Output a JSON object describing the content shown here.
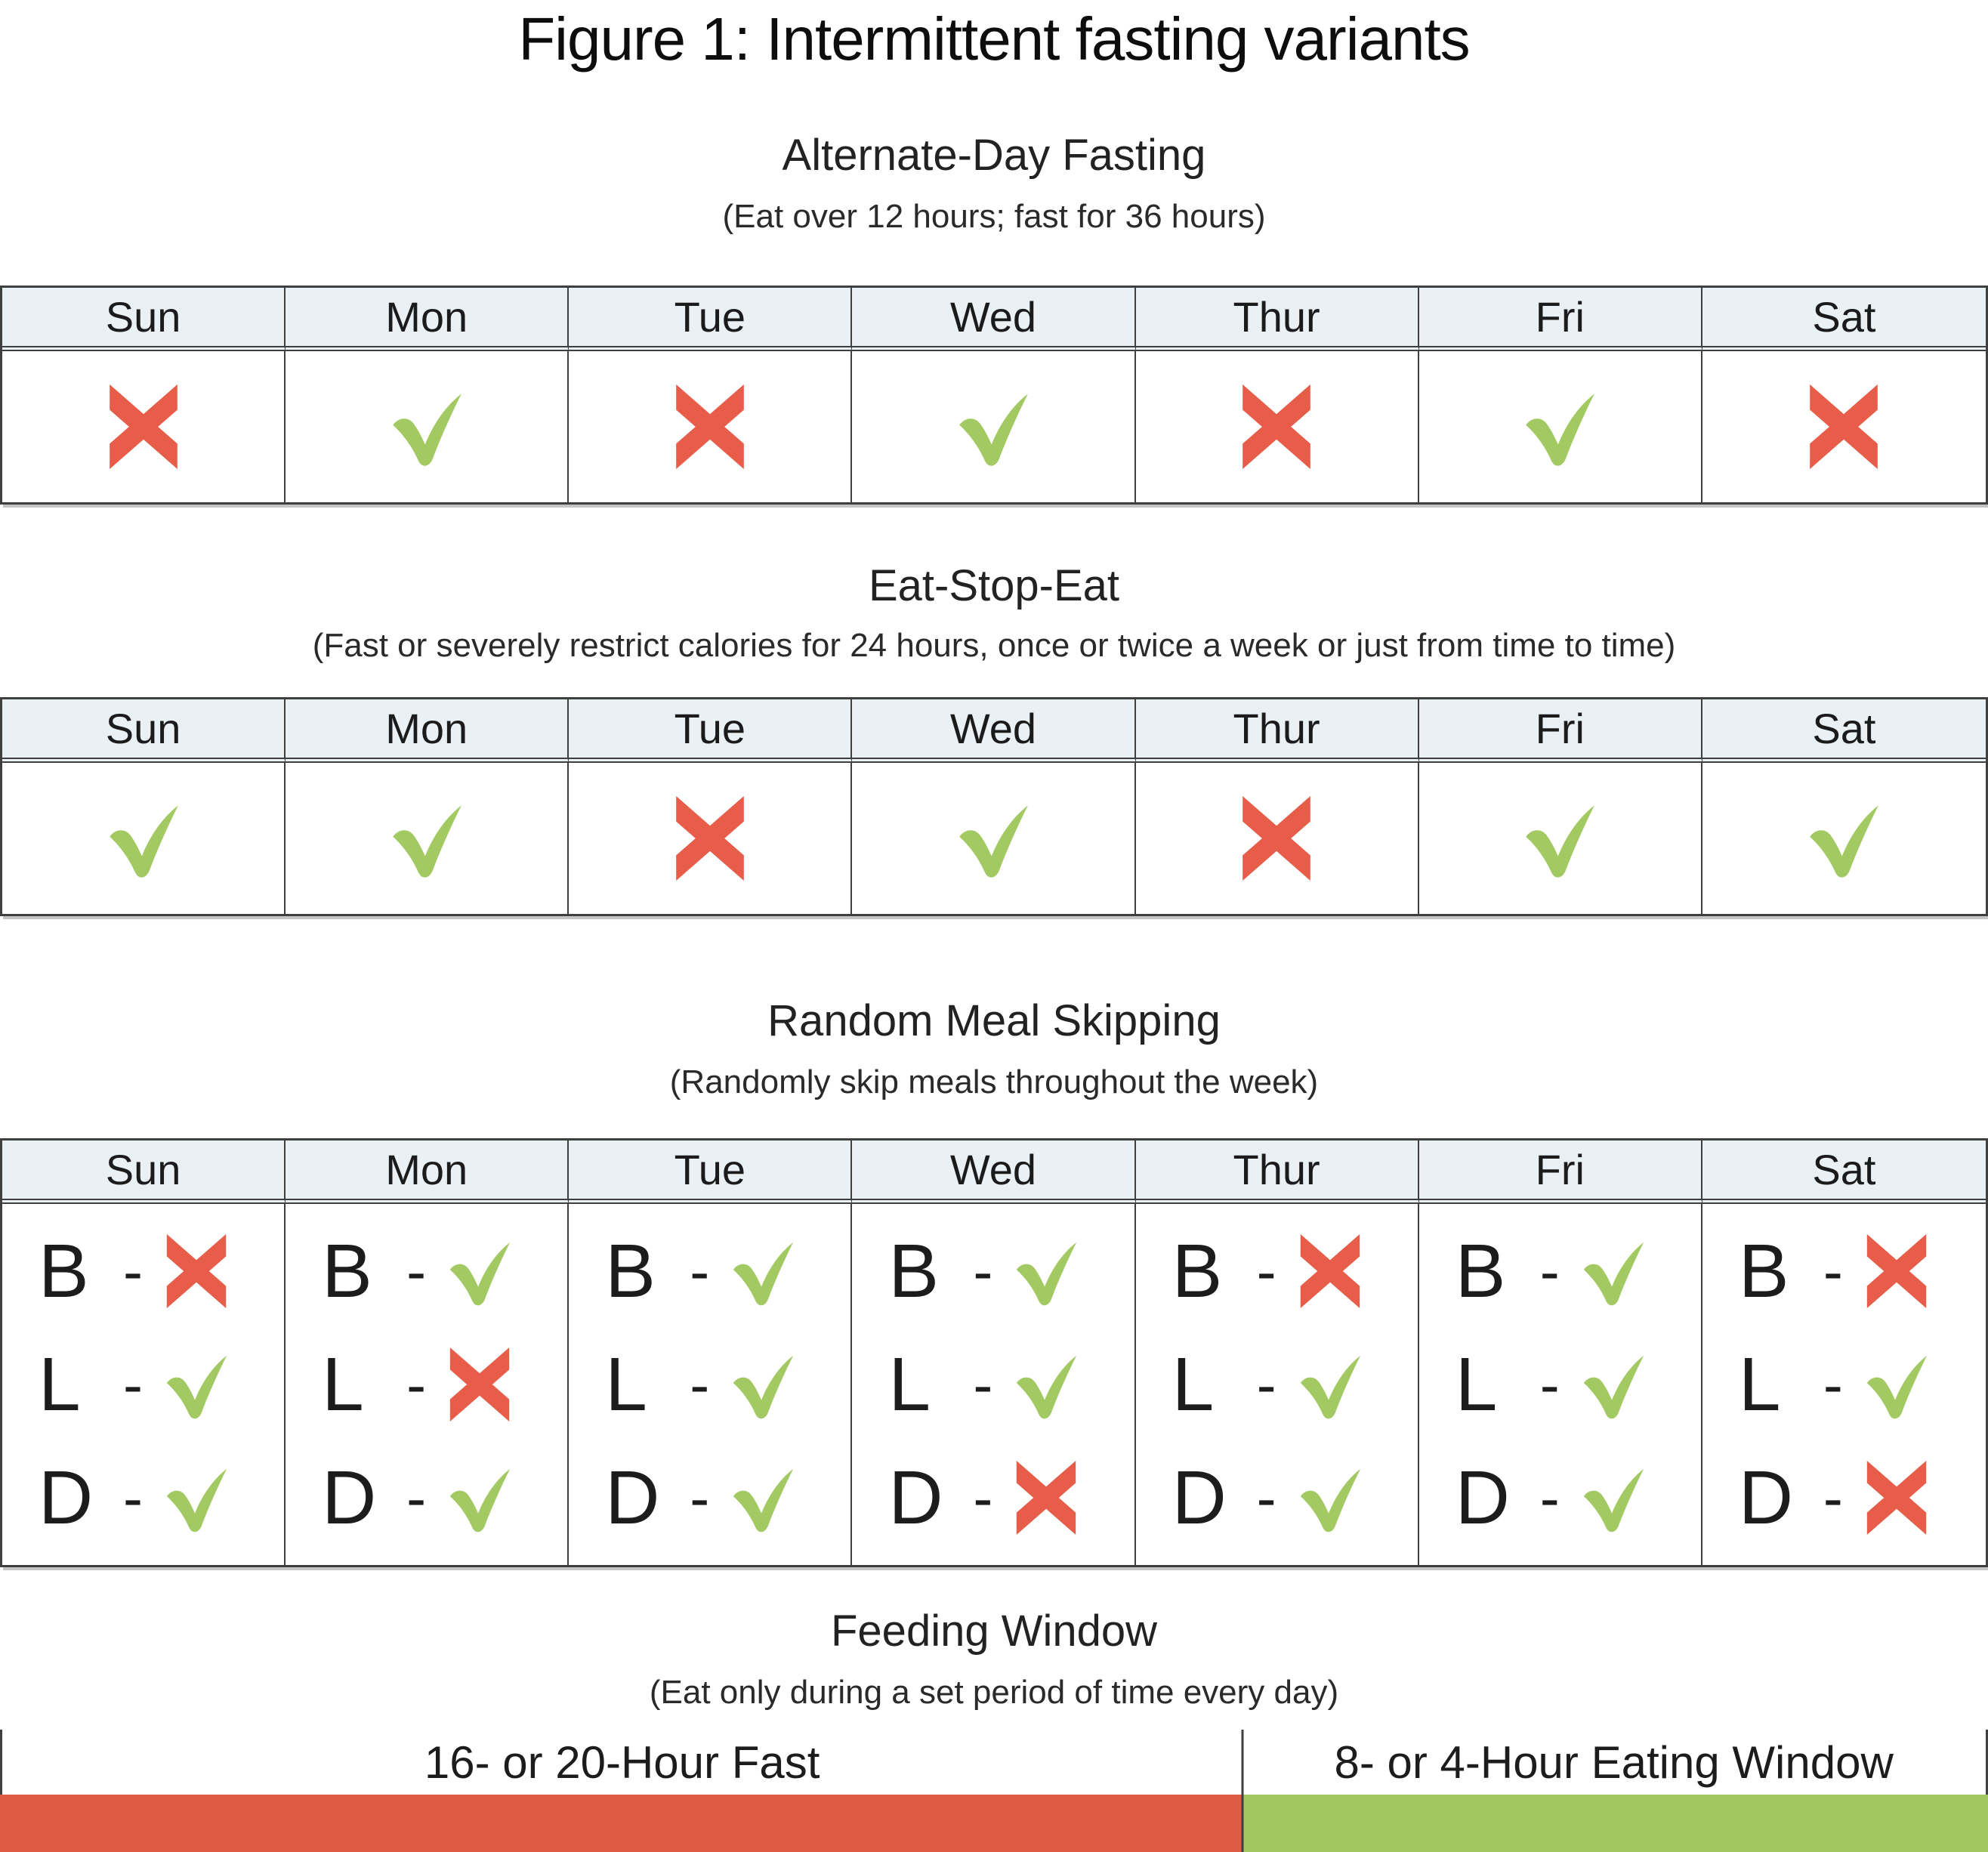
{
  "title": "Figure 1: Intermittent fasting variants",
  "days": [
    "Sun",
    "Mon",
    "Tue",
    "Wed",
    "Thur",
    "Fri",
    "Sat"
  ],
  "sections": {
    "alternate_day": {
      "title": "Alternate-Day Fasting",
      "subtitle": "(Eat over 12 hours; fast for 36 hours)",
      "day_marks": [
        "cross",
        "check",
        "cross",
        "check",
        "cross",
        "check",
        "cross"
      ]
    },
    "eat_stop_eat": {
      "title": "Eat-Stop-Eat",
      "subtitle": "(Fast or severely restrict calories for 24 hours, once or twice a week or just from time to time)",
      "day_marks": [
        "check",
        "check",
        "cross",
        "check",
        "cross",
        "check",
        "check"
      ]
    },
    "random_meal_skipping": {
      "title": "Random Meal Skipping",
      "subtitle": "(Randomly skip meals throughout the week)",
      "meal_labels": [
        "B",
        "L",
        "D"
      ],
      "day_meal_marks": [
        [
          "cross",
          "check",
          "check"
        ],
        [
          "check",
          "cross",
          "check"
        ],
        [
          "check",
          "check",
          "check"
        ],
        [
          "check",
          "check",
          "cross"
        ],
        [
          "cross",
          "check",
          "check"
        ],
        [
          "check",
          "check",
          "check"
        ],
        [
          "cross",
          "check",
          "cross"
        ]
      ]
    },
    "feeding_window": {
      "title": "Feeding Window",
      "subtitle": "(Eat only during a set period of time every day)",
      "fast_label": "16- or 20-Hour Fast",
      "eating_label": "8- or 4-Hour Eating Window",
      "fast_width_percent": 62.5
    }
  },
  "colors": {
    "check": "#a3c963",
    "cross": "#e85d4a",
    "fast_bar": "#e15a43",
    "eat_bar": "#a1c75e",
    "header_bg": "#eaf1f4",
    "border": "#3f3f3f",
    "shadow": "#c5c5c5"
  }
}
